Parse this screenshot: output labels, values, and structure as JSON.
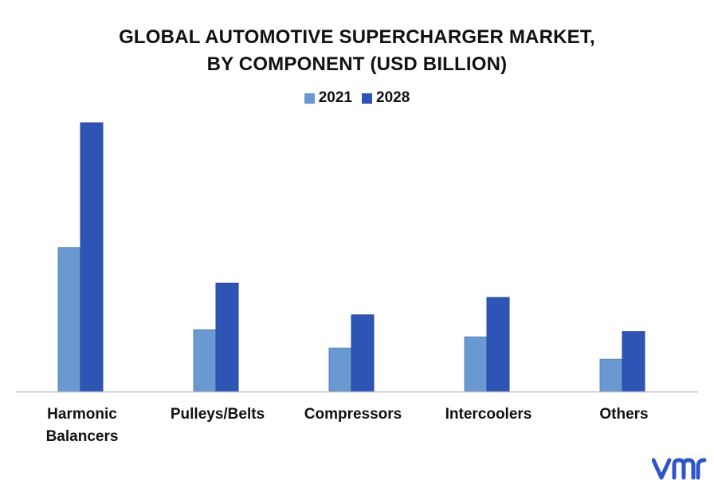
{
  "title_line1": "GLOBAL AUTOMOTIVE SUPERCHARGER MARKET,",
  "title_line2": "BY COMPONENT (USD BILLION)",
  "colors": {
    "series_2021": "#6a98d0",
    "series_2028": "#2e55b5",
    "axis": "#bfbfbf",
    "logo": "#2e55c8"
  },
  "logo_icon": "vmr-logo-icon",
  "chart_data": {
    "type": "bar",
    "title": "GLOBAL AUTOMOTIVE SUPERCHARGER MARKET, BY COMPONENT (USD BILLION)",
    "categories": [
      "Harmonic Balancers",
      "Pulleys/Belts",
      "Compressors",
      "Intercoolers",
      "Others"
    ],
    "category_lines": [
      [
        "Harmonic",
        "Balancers"
      ],
      [
        "Pulleys/Belts"
      ],
      [
        "Compressors"
      ],
      [
        "Intercoolers"
      ],
      [
        "Others"
      ]
    ],
    "series": [
      {
        "name": "2021",
        "values": [
          1.82,
          0.78,
          0.55,
          0.69,
          0.41
        ]
      },
      {
        "name": "2028",
        "values": [
          3.4,
          1.37,
          0.97,
          1.19,
          0.76
        ]
      }
    ],
    "ylim": [
      0,
      3.4
    ],
    "grid": false,
    "legend_position": "top-center",
    "xlabel": "",
    "ylabel": ""
  }
}
